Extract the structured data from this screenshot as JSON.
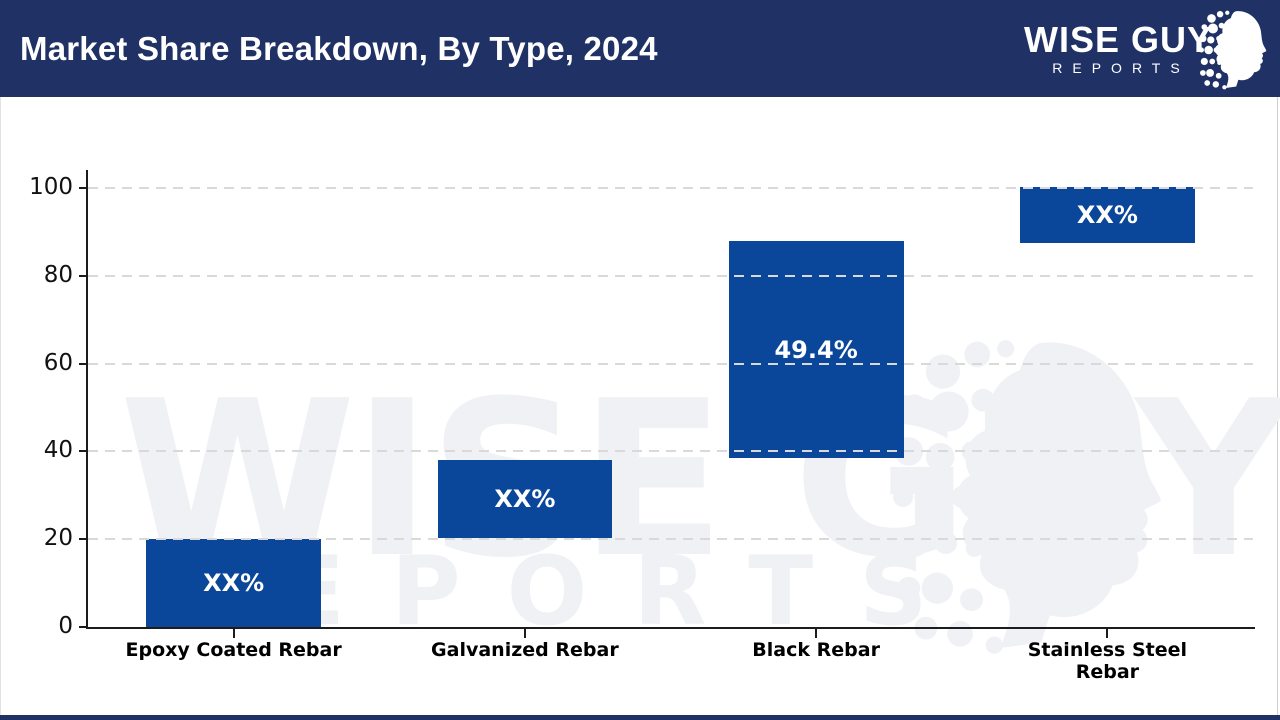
{
  "header": {
    "title": "Market Share Breakdown, By Type, 2024",
    "logo": {
      "line1": "WISE GUY",
      "line2": "REPORTS"
    }
  },
  "watermark": {
    "line1": "WISE GUY",
    "line2": "REPORTS"
  },
  "chart_data": {
    "type": "bar",
    "subtype": "floating-waterfall-segments",
    "title": "Market Share Breakdown, By Type, 2024",
    "categories": [
      "Epoxy Coated Rebar",
      "Galvanized Rebar",
      "Black Rebar",
      "Stainless Steel\nRebar"
    ],
    "segments": [
      {
        "category": "Epoxy Coated Rebar",
        "start": 0,
        "end": 20,
        "label": "XX%"
      },
      {
        "category": "Galvanized Rebar",
        "start": 20.3,
        "end": 38.1,
        "label": "XX%"
      },
      {
        "category": "Black Rebar",
        "start": 38.5,
        "end": 87.9,
        "label": "49.4%"
      },
      {
        "category": "Stainless Steel Rebar",
        "start": 87.5,
        "end": 100.2,
        "label": "XX%"
      }
    ],
    "yticks": [
      0,
      20,
      40,
      60,
      80,
      100
    ],
    "ylim": [
      0,
      104
    ],
    "xlabel": "",
    "ylabel": "",
    "grid": "horizontal-dashed",
    "legend": "none",
    "bar_color": "#0a4699",
    "bar_label_color": "#ffffff"
  },
  "colors": {
    "header_bg": "#203265",
    "footer_bg": "#203265",
    "bar": "#0a4699",
    "grid": "#d9d9d9",
    "axis": "#1c1c1c",
    "watermark": "#eff1f4"
  }
}
